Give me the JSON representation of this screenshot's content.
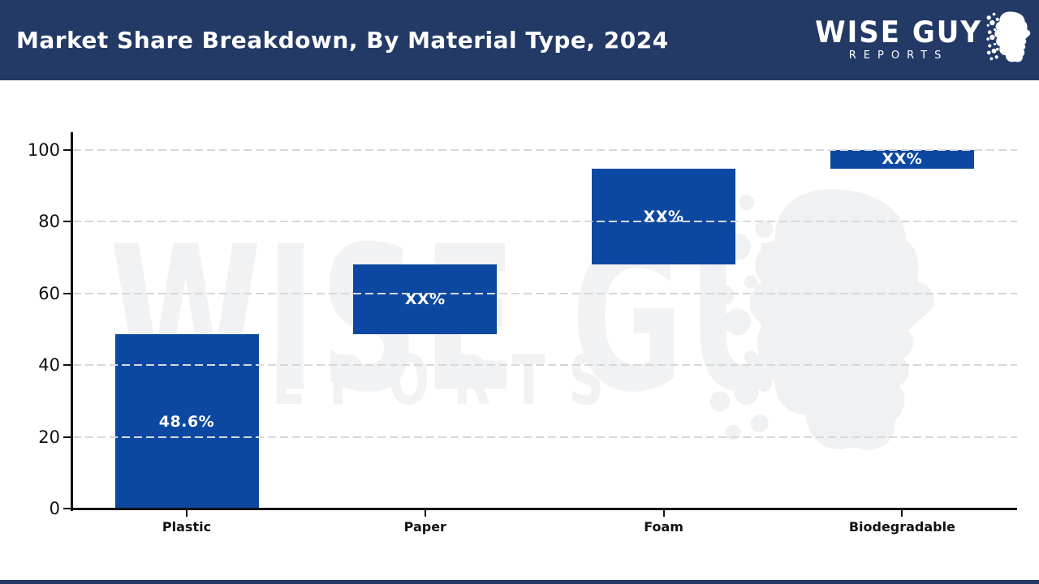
{
  "header": {
    "title": "Market Share Breakdown, By Material Type, 2024",
    "logo": {
      "line1": "WISE GUY",
      "line2": "REPORTS"
    }
  },
  "watermark": {
    "line1": "WISE GUY",
    "line2": "REPORTS"
  },
  "chart_data": {
    "type": "bar",
    "subtype": "waterfall",
    "title": "Market Share Breakdown, By Material Type, 2024",
    "categories": [
      "Plastic",
      "Paper",
      "Foam",
      "Biodegradable"
    ],
    "segments": [
      {
        "category": "Plastic",
        "start": 0,
        "end": 48.6,
        "label": "48.6%"
      },
      {
        "category": "Paper",
        "start": 48.6,
        "end": 68,
        "label": "XX%"
      },
      {
        "category": "Foam",
        "start": 68,
        "end": 94.8,
        "label": "XX%"
      },
      {
        "category": "Biodegradable",
        "start": 94.8,
        "end": 100,
        "label": "XX%"
      }
    ],
    "xlabel": "",
    "ylabel": "",
    "yticks": [
      0,
      20,
      40,
      60,
      80,
      100
    ],
    "ytick_labels": [
      "0",
      "20",
      "40",
      "60",
      "80",
      "100"
    ],
    "ylim": [
      0,
      105
    ],
    "grid": "horizontal-dashed",
    "legend": "none",
    "bar_color": "#0C48A2",
    "bar_label_color": "#ffffff"
  },
  "colors": {
    "header_bg": "#233A66",
    "footer_bg": "#233A66",
    "bar": "#0C48A2",
    "grid": "#d6d8da",
    "axis": "#111111",
    "watermark": "#f0f2f4"
  }
}
